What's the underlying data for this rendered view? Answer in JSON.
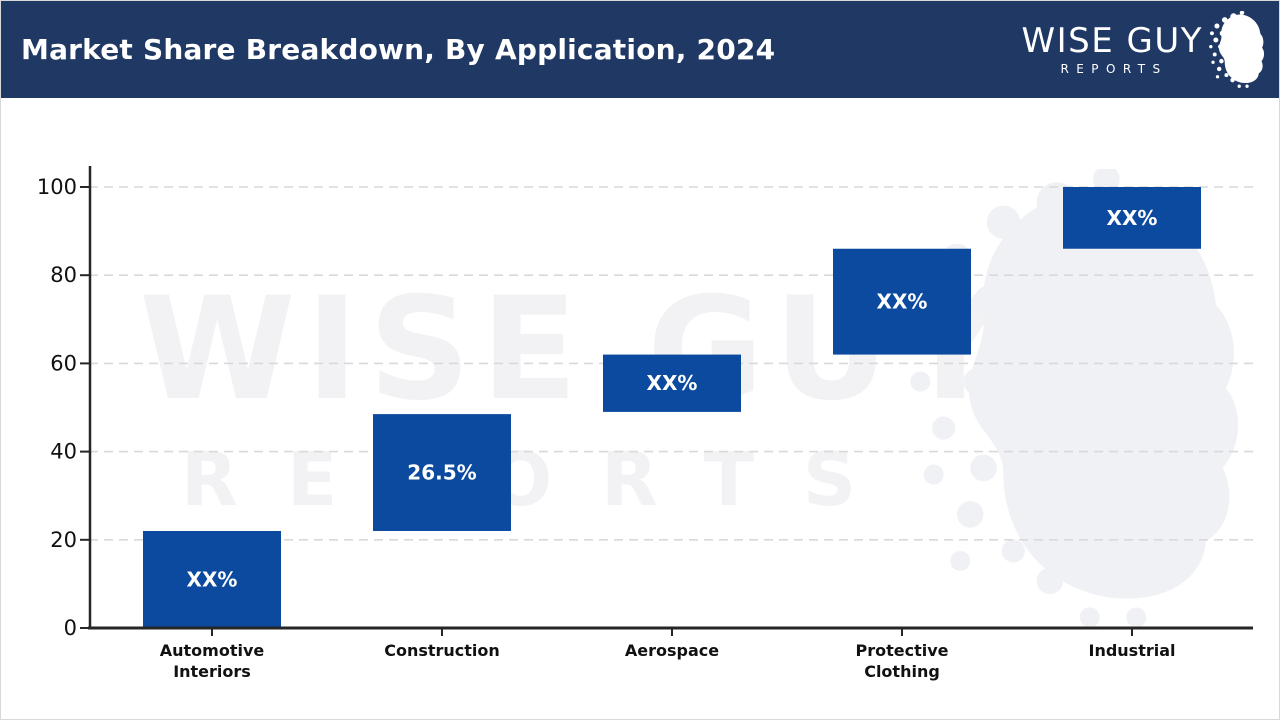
{
  "header": {
    "title": "Market Share Breakdown, By Application, 2024",
    "logo": {
      "line1": "WISE GUY",
      "line2": "REPORTS"
    }
  },
  "watermark": {
    "line1": "WISE GUY",
    "line2": "REPORTS"
  },
  "colors": {
    "header_bg": "#1f3864",
    "bar_fill": "#0b4a9e",
    "bar_label_text": "#ffffff",
    "grid_line": "#d9d9d9",
    "axis_line": "#262626",
    "tick_label_text": "#111111",
    "watermark": "#f2f2f4"
  },
  "chart_data": {
    "type": "bar",
    "subtype": "waterfall",
    "title": "Market Share Breakdown, By Application, 2024",
    "xlabel": "",
    "ylabel": "",
    "ylim": [
      0,
      105
    ],
    "yticks": [
      0,
      20,
      40,
      60,
      80,
      100
    ],
    "grid": "horizontal-dashed",
    "legend": false,
    "categories": [
      "Automotive\nInteriors",
      "Construction",
      "Aerospace",
      "Protective\nClothing",
      "Industrial"
    ],
    "bars": [
      {
        "category": "Automotive Interiors",
        "start": 0,
        "end": 22,
        "label": "XX%"
      },
      {
        "category": "Construction",
        "start": 22,
        "end": 48.5,
        "label": "26.5%"
      },
      {
        "category": "Aerospace",
        "start": 49,
        "end": 62,
        "label": "XX%"
      },
      {
        "category": "Protective Clothing",
        "start": 62,
        "end": 86,
        "label": "XX%"
      },
      {
        "category": "Industrial",
        "start": 86,
        "end": 100,
        "label": "XX%"
      }
    ]
  }
}
